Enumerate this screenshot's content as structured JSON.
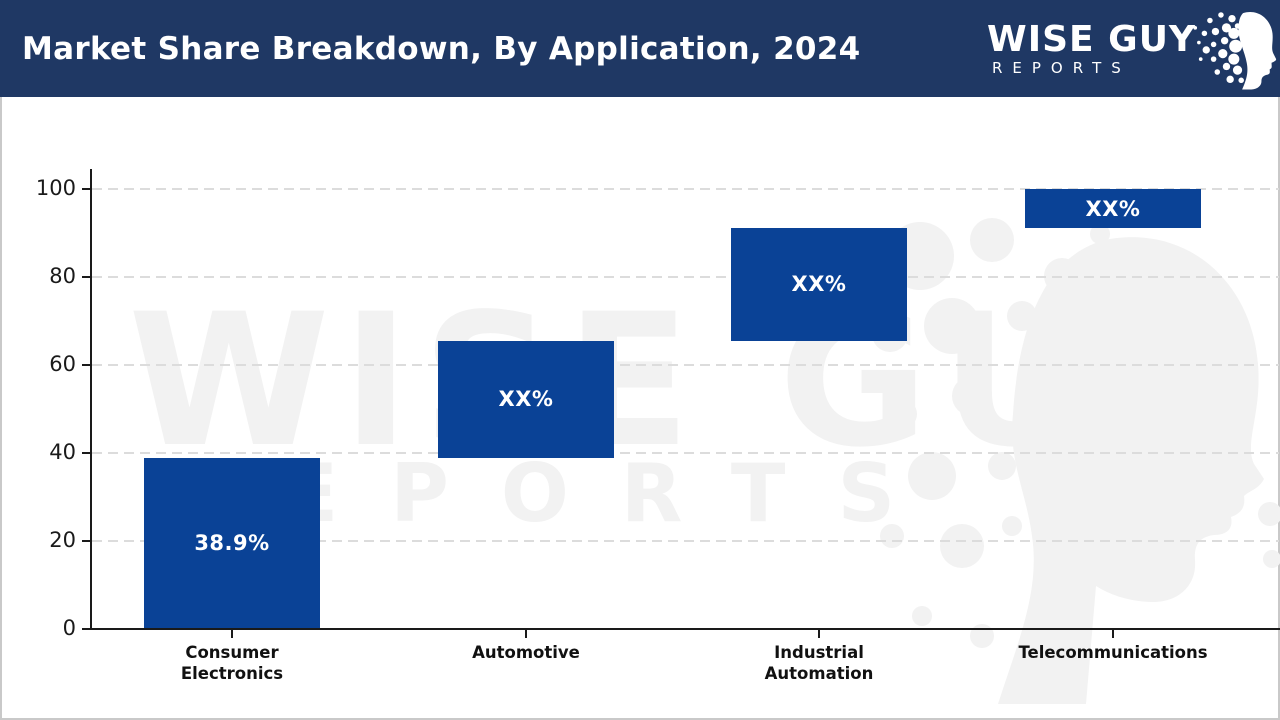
{
  "header": {
    "title": "Market Share Breakdown, By Application, 2024",
    "logo": {
      "line1": "WISE GUY",
      "line2": "REPORTS"
    }
  },
  "watermark": {
    "line1": "WISE GUY",
    "line2": "REPORTS"
  },
  "chart_data": {
    "type": "bar",
    "subtype": "floating-segment-waterfall",
    "title": "Market Share Breakdown, By Application, 2024",
    "categories": [
      "Consumer\nElectronics",
      "Automotive",
      "Industrial\nAutomation",
      "Telecommunications"
    ],
    "segments": [
      {
        "category": "Consumer Electronics",
        "start": 0,
        "end": 38.9,
        "label": "38.9%"
      },
      {
        "category": "Automotive",
        "start": 38.9,
        "end": 65.5,
        "label": "XX%"
      },
      {
        "category": "Industrial Automation",
        "start": 65.5,
        "end": 91.1,
        "label": "XX%"
      },
      {
        "category": "Telecommunications",
        "start": 91.1,
        "end": 100,
        "label": "XX%"
      }
    ],
    "xlabel": "",
    "ylabel": "",
    "ylim": [
      0,
      100
    ],
    "yticks": [
      0,
      20,
      40,
      60,
      80,
      100
    ],
    "grid": "horizontal-dashed",
    "legend": "none",
    "bar_color": "#0A4296",
    "bar_label_color": "#FFFFFF"
  },
  "colors": {
    "header_bg": "#1F3864",
    "bar_blue": "#0A4296",
    "watermark_gray": "#F2F2F2",
    "gridline": "#DCDCDC",
    "axis": "#1A1A1A",
    "page_border": "#C9C9C9"
  }
}
